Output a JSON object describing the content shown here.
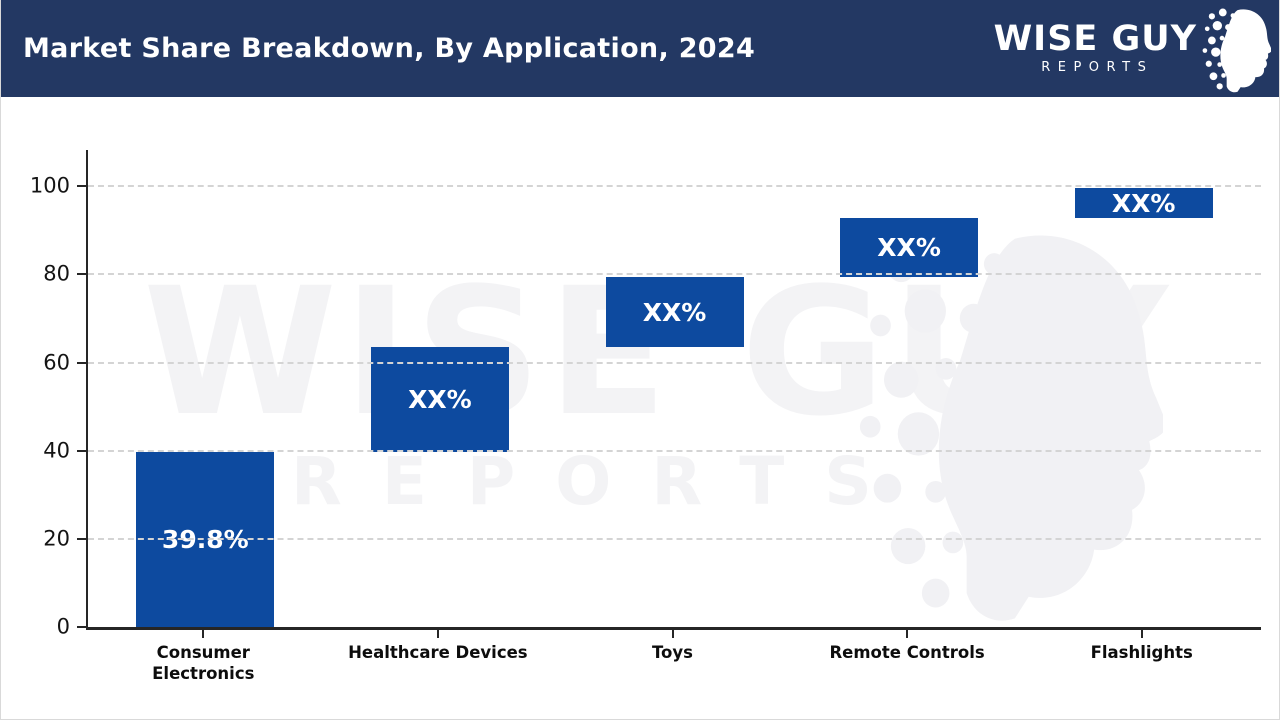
{
  "header": {
    "title": "Market Share Breakdown, By Application, 2024",
    "logo_line1": "WISE GUY",
    "logo_line2": "REPORTS"
  },
  "watermark": {
    "line1": "WISE GUY",
    "line2": "REPORTS"
  },
  "chart_data": {
    "type": "bar",
    "subtype": "waterfall",
    "title": "Market Share Breakdown, By Application, 2024",
    "categories": [
      "Consumer\nElectronics",
      "Healthcare Devices",
      "Toys",
      "Remote Controls",
      "Flashlights"
    ],
    "segments": [
      {
        "category": "Consumer Electronics",
        "start": 0,
        "end": 39.8,
        "value_label": "39.8%"
      },
      {
        "category": "Healthcare Devices",
        "start": 39.8,
        "end": 63.5,
        "value_label": "XX%"
      },
      {
        "category": "Toys",
        "start": 63.5,
        "end": 79.4,
        "value_label": "XX%"
      },
      {
        "category": "Remote Controls",
        "start": 79.4,
        "end": 92.7,
        "value_label": "XX%"
      },
      {
        "category": "Flashlights",
        "start": 92.7,
        "end": 99.6,
        "value_label": "XX%"
      }
    ],
    "ylim": [
      0,
      100
    ],
    "yticks": [
      0,
      20,
      40,
      60,
      80,
      100
    ],
    "xlabel": "",
    "ylabel": "",
    "grid": "horizontal-dashed",
    "legend": "none"
  },
  "colors": {
    "header_bg": "#233863",
    "bar": "#0d4a9f",
    "bar_label": "#ffffff",
    "grid": "#d4d4d4",
    "axis": "#262626",
    "watermark": "#f3f3f5",
    "page_bg": "#ffffff"
  }
}
